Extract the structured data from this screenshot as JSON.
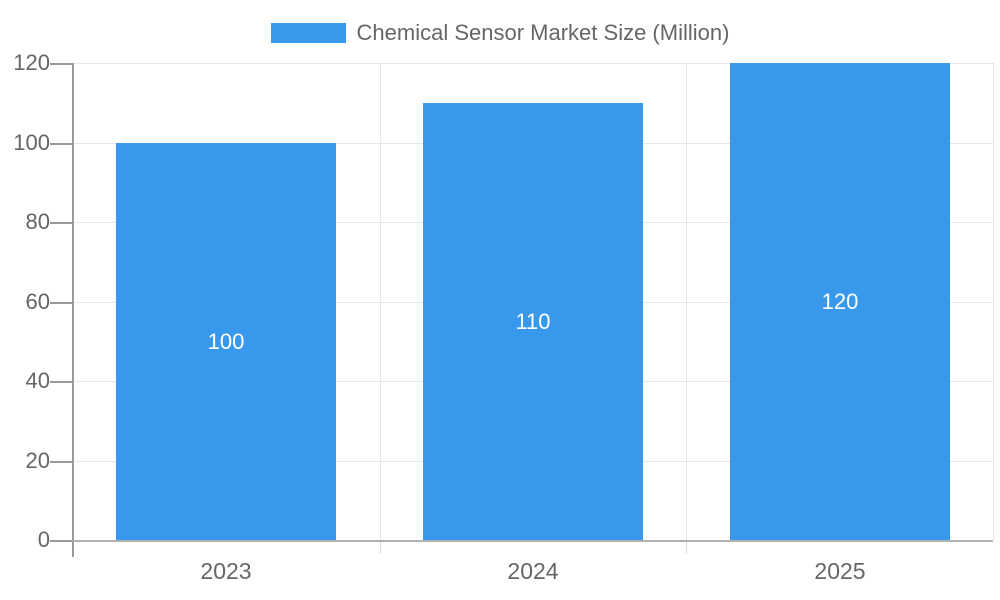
{
  "chart_data": {
    "type": "bar",
    "title": "Chemical Sensor Market Size (Million)",
    "categories": [
      "2023",
      "2024",
      "2025"
    ],
    "series": [
      {
        "name": "Chemical Sensor Market Size (Million)",
        "values": [
          100,
          110,
          120
        ]
      }
    ],
    "bar_labels": [
      "100",
      "110",
      "120"
    ],
    "xlabel": "",
    "ylabel": "",
    "ylim": [
      0,
      120
    ],
    "yticks": [
      0,
      20,
      40,
      60,
      80,
      100,
      120
    ],
    "grid": true,
    "legend_position": "top-center",
    "colors": {
      "bar": "#3898EC",
      "bar_label": "#FFFFFF",
      "grid": "#E6E6E6",
      "axis": "#9A9A9A",
      "axis_bottom": "#B0B0B0",
      "text": "#666666",
      "background": "#FFFFFF"
    }
  }
}
